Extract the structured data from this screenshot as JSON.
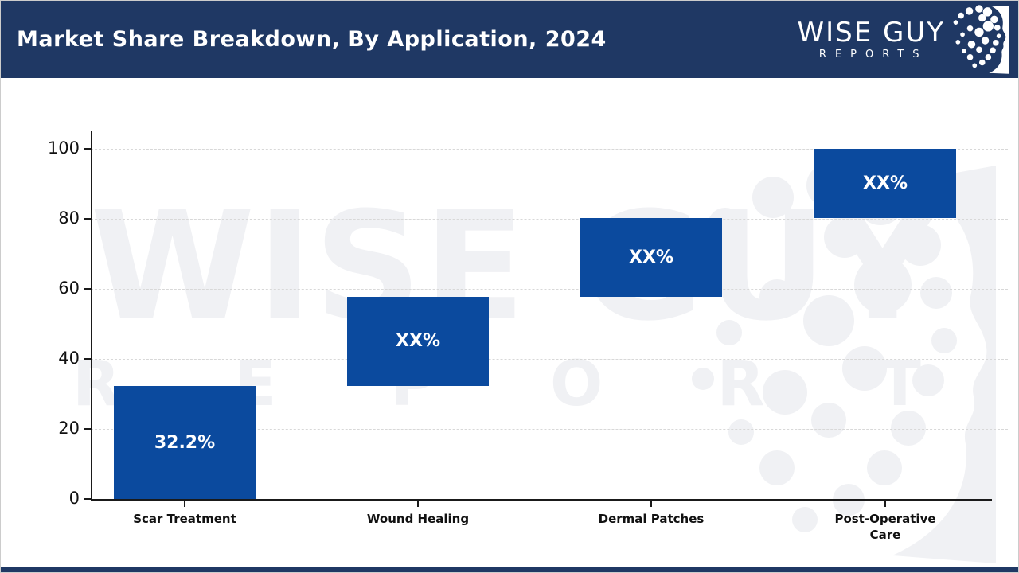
{
  "header": {
    "title": "Market Share Breakdown, By Application, 2024",
    "logo_line1": "WISE GUY",
    "logo_line2": "REPORTS"
  },
  "watermark": {
    "line1": "WISE GUY",
    "line2": "REPORTS"
  },
  "chart_data": {
    "type": "bar",
    "subtype": "waterfall",
    "title": "Market Share Breakdown, By Application, 2024",
    "categories": [
      "Scar Treatment",
      "Wound Healing",
      "Dermal Patches",
      "Post-Operative Care"
    ],
    "series": [
      {
        "name": "Market Share (%)",
        "segments": [
          {
            "category": "Scar Treatment",
            "start": 0,
            "end": 32.2,
            "label": "32.2%"
          },
          {
            "category": "Wound Healing",
            "start": 32.2,
            "end": 57.8,
            "label": "XX%"
          },
          {
            "category": "Dermal Patches",
            "start": 57.8,
            "end": 80.2,
            "label": "XX%"
          },
          {
            "category": "Post-Operative Care",
            "start": 80.2,
            "end": 100,
            "label": "XX%"
          }
        ]
      }
    ],
    "xlabel": "",
    "ylabel": "",
    "ylim": [
      0,
      100
    ],
    "yticks": [
      0,
      20,
      40,
      60,
      80,
      100
    ],
    "grid": "horizontal-dashed",
    "legend": "none",
    "bar_color": "#0b4a9e",
    "bar_label_color": "#ffffff",
    "header_color": "#1f3864"
  }
}
